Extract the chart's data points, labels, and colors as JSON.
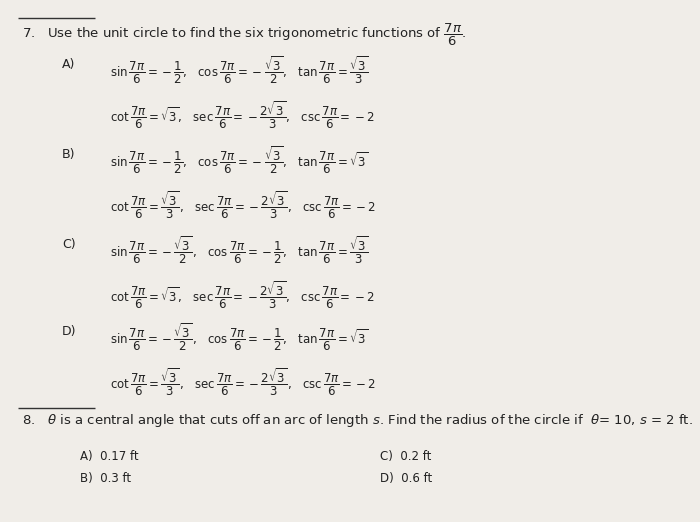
{
  "bg_color": "#f0ede8",
  "title_text": "7.   Use the unit circle to find the six trigonometric functions of $\\dfrac{7\\pi}{6}$.",
  "q8_text": "8.   $\\theta$ is a central angle that cuts off an arc of length $s$. Find the radius of the circle if  $\\theta$= 10, $s$ = 2 ft.",
  "options": {
    "A_line1": "$\\sin\\dfrac{7\\pi}{6} = -\\dfrac{1}{2}$,   $\\cos\\dfrac{7\\pi}{6} = -\\dfrac{\\sqrt{3}}{2}$,   $\\tan\\dfrac{7\\pi}{6} = \\dfrac{\\sqrt{3}}{3}$",
    "A_line2": "$\\cot\\dfrac{7\\pi}{6} = \\sqrt{3}$,   $\\sec\\dfrac{7\\pi}{6} = -\\dfrac{2\\sqrt{3}}{3}$,   $\\csc\\dfrac{7\\pi}{6} = -2$",
    "B_line1": "$\\sin\\dfrac{7\\pi}{6} = -\\dfrac{1}{2}$,   $\\cos\\dfrac{7\\pi}{6} = -\\dfrac{\\sqrt{3}}{2}$,   $\\tan\\dfrac{7\\pi}{6} = \\sqrt{3}$",
    "B_line2": "$\\cot\\dfrac{7\\pi}{6} = \\dfrac{\\sqrt{3}}{3}$,   $\\sec\\dfrac{7\\pi}{6} = -\\dfrac{2\\sqrt{3}}{3}$,   $\\csc\\dfrac{7\\pi}{6} = -2$",
    "C_line1": "$\\sin\\dfrac{7\\pi}{6} = -\\dfrac{\\sqrt{3}}{2}$,   $\\cos\\dfrac{7\\pi}{6} = -\\dfrac{1}{2}$,   $\\tan\\dfrac{7\\pi}{6} = \\dfrac{\\sqrt{3}}{3}$",
    "C_line2": "$\\cot\\dfrac{7\\pi}{6} = \\sqrt{3}$,   $\\sec\\dfrac{7\\pi}{6} = -\\dfrac{2\\sqrt{3}}{3}$,   $\\csc\\dfrac{7\\pi}{6} = -2$",
    "D_line1": "$\\sin\\dfrac{7\\pi}{6} = -\\dfrac{\\sqrt{3}}{2}$,   $\\cos\\dfrac{7\\pi}{6} = -\\dfrac{1}{2}$,   $\\tan\\dfrac{7\\pi}{6} = \\sqrt{3}$",
    "D_line2": "$\\cot\\dfrac{7\\pi}{6} = \\dfrac{\\sqrt{3}}{3}$,   $\\sec\\dfrac{7\\pi}{6} = -\\dfrac{2\\sqrt{3}}{3}$,   $\\csc\\dfrac{7\\pi}{6} = -2$"
  },
  "q8_options": {
    "A": "A)  0.17 ft",
    "B": "B)  0.3 ft",
    "C": "C)  0.2 ft",
    "D": "D)  0.6 ft"
  },
  "font_size_title": 9.5,
  "font_size_options": 8.5,
  "font_size_label": 9.0,
  "text_color": "#222222",
  "line_color": "#333333"
}
